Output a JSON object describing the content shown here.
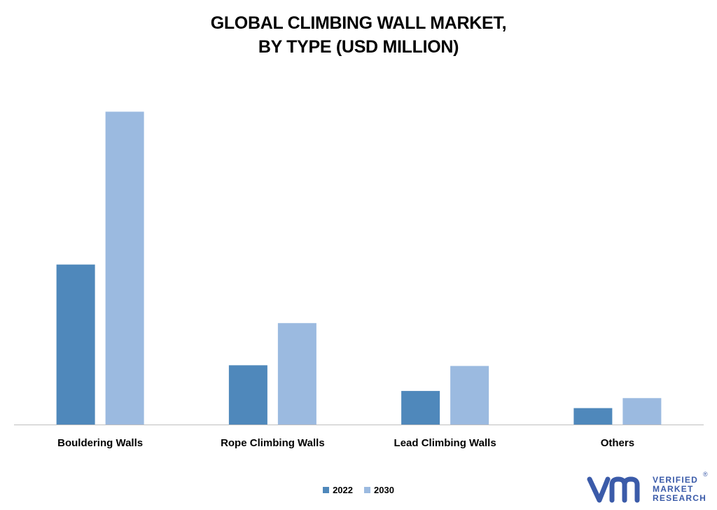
{
  "title_line1": "GLOBAL CLIMBING WALL MARKET,",
  "title_line2": "BY TYPE (USD MILLION)",
  "colors": {
    "series_2022": "#4f88bb",
    "series_2030": "#9bbae0",
    "axis": "#bfbfbf",
    "logo": "#3b5ba9"
  },
  "chart_data": {
    "type": "bar",
    "title": "GLOBAL CLIMBING WALL MARKET, BY TYPE (USD MILLION)",
    "categories": [
      "Bouldering Walls",
      "Rope Climbing Walls",
      "Lead Climbing Walls",
      "Others"
    ],
    "series": [
      {
        "name": "2022",
        "values": [
          224,
          83,
          47,
          23
        ]
      },
      {
        "name": "2030",
        "values": [
          438,
          142,
          82,
          37
        ]
      }
    ],
    "ylim": [
      0,
      460
    ],
    "grid": false,
    "legend": "bottom",
    "xlabel": "",
    "ylabel": ""
  },
  "logo": {
    "line1": "VERIFIED",
    "line2": "MARKET",
    "line3": "RESEARCH",
    "mark": "®"
  }
}
